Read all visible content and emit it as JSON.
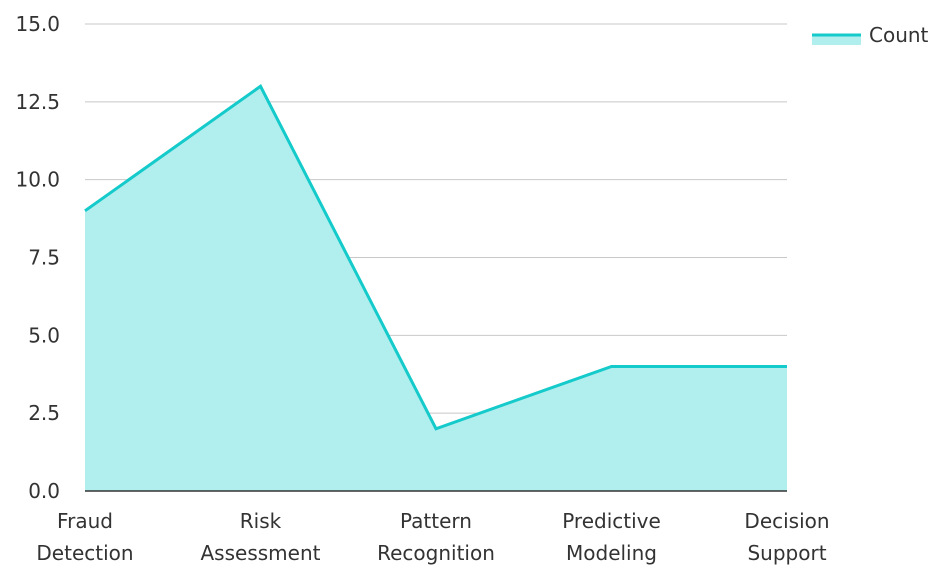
{
  "chart_data": {
    "type": "area",
    "categories": [
      [
        "Fraud",
        "Detection"
      ],
      [
        "Risk",
        "Assessment"
      ],
      [
        "Pattern",
        "Recognition"
      ],
      [
        "Predictive",
        "Modeling"
      ],
      [
        "Decision",
        "Support"
      ]
    ],
    "series": [
      {
        "name": "Count",
        "values": [
          9,
          13,
          2,
          4,
          4
        ]
      }
    ],
    "ylim": [
      0,
      15
    ],
    "yticks": [
      0,
      2.5,
      5,
      7.5,
      10,
      12.5,
      15
    ],
    "ytick_labels": [
      "0.0",
      "2.5",
      "5.0",
      "7.5",
      "10.0",
      "12.5",
      "15.0"
    ],
    "grid": true,
    "legend_position": "top-right",
    "colors": {
      "line": "#14CACA",
      "fill": "#B1EEEE",
      "grid": "#C8C8C8",
      "axis": "#333333"
    }
  }
}
